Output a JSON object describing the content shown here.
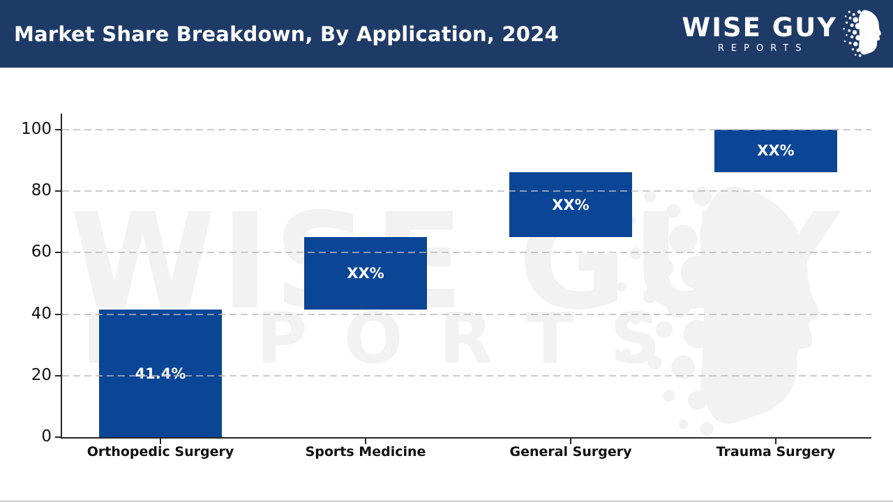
{
  "header": {
    "title": "Market Share Breakdown, By Application, 2024",
    "logo": {
      "line1": "WISE GUY",
      "line2": "REPORTS"
    }
  },
  "watermark": {
    "line1": "WISE GUY",
    "line2": "REPORTS"
  },
  "chart_data": {
    "type": "bar",
    "subtype": "waterfall",
    "title": "Market Share Breakdown, By Application, 2024",
    "categories": [
      "Orthopedic Surgery",
      "Sports Medicine",
      "General Surgery",
      "Trauma Surgery"
    ],
    "segments": [
      {
        "category": "Orthopedic Surgery",
        "start": 0,
        "end": 41.4,
        "label": "41.4%"
      },
      {
        "category": "Sports Medicine",
        "start": 41.4,
        "end": 65,
        "label": "XX%"
      },
      {
        "category": "General Surgery",
        "start": 65,
        "end": 86.2,
        "label": "XX%"
      },
      {
        "category": "Trauma Surgery",
        "start": 86.2,
        "end": 100,
        "label": "XX%"
      }
    ],
    "yticks": [
      0,
      20,
      40,
      60,
      80,
      100
    ],
    "ylim": [
      0,
      105
    ],
    "xlabel": "",
    "ylabel": "",
    "grid": "horizontal-dashed",
    "legend": "none",
    "colors": {
      "bar": "#0b4596",
      "bar_label": "#ffffff",
      "banner": "#1e3a66",
      "axis": "#262626",
      "gridline": "#c9c9c9",
      "watermark": "#f2f2f2"
    }
  }
}
